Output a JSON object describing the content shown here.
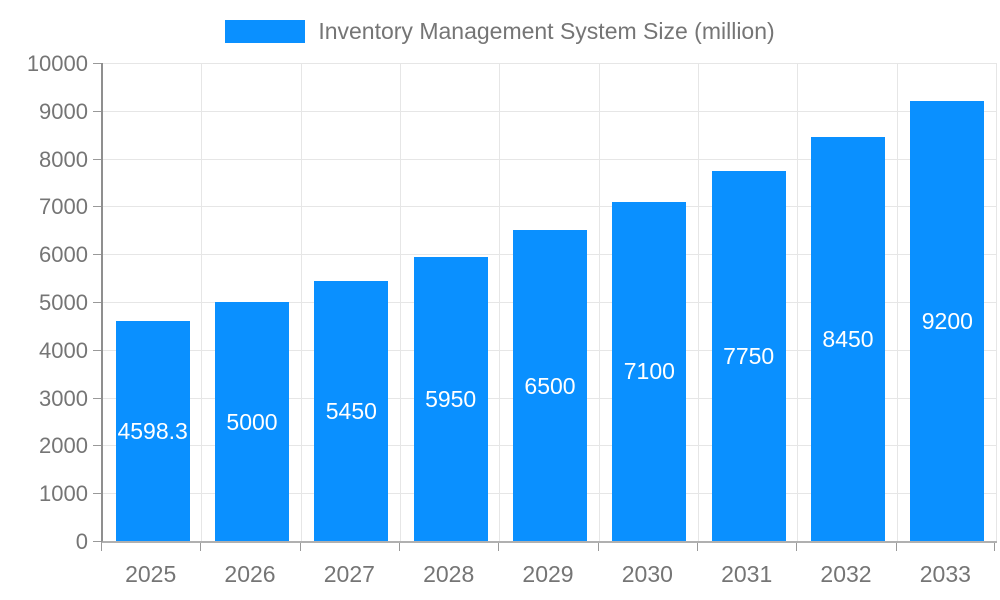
{
  "legend": {
    "label": "Inventory Management System Size (million)"
  },
  "colors": {
    "bar": "#0a90ff",
    "bar_label_text": "#ffffff",
    "axis_text": "#757575",
    "grid_line": "#e6e6e6",
    "y_axis_line": "#8f8f8f",
    "x_axis_line": "#b0b0b0",
    "tick": "#999999"
  },
  "chart_data": {
    "type": "bar",
    "title": "Inventory Management System Size (million)",
    "categories": [
      "2025",
      "2026",
      "2027",
      "2028",
      "2029",
      "2030",
      "2031",
      "2032",
      "2033"
    ],
    "series": [
      {
        "name": "Inventory Management System Size (million)",
        "values": [
          4598.3,
          5000,
          5450,
          5950,
          6500,
          7100,
          7750,
          8450,
          9200
        ]
      }
    ],
    "bar_labels": [
      "4598.3",
      "5000",
      "5450",
      "5950",
      "6500",
      "7100",
      "7750",
      "8450",
      "9200"
    ],
    "xlabel": "",
    "ylabel": "",
    "ylim": [
      0,
      10000
    ],
    "ytick_interval": 1000,
    "ytick_labels": [
      "0",
      "1000",
      "2000",
      "3000",
      "4000",
      "5000",
      "6000",
      "7000",
      "8000",
      "9000",
      "10000"
    ],
    "grid": true,
    "legend_position": "top",
    "label_position": "inside-center"
  }
}
